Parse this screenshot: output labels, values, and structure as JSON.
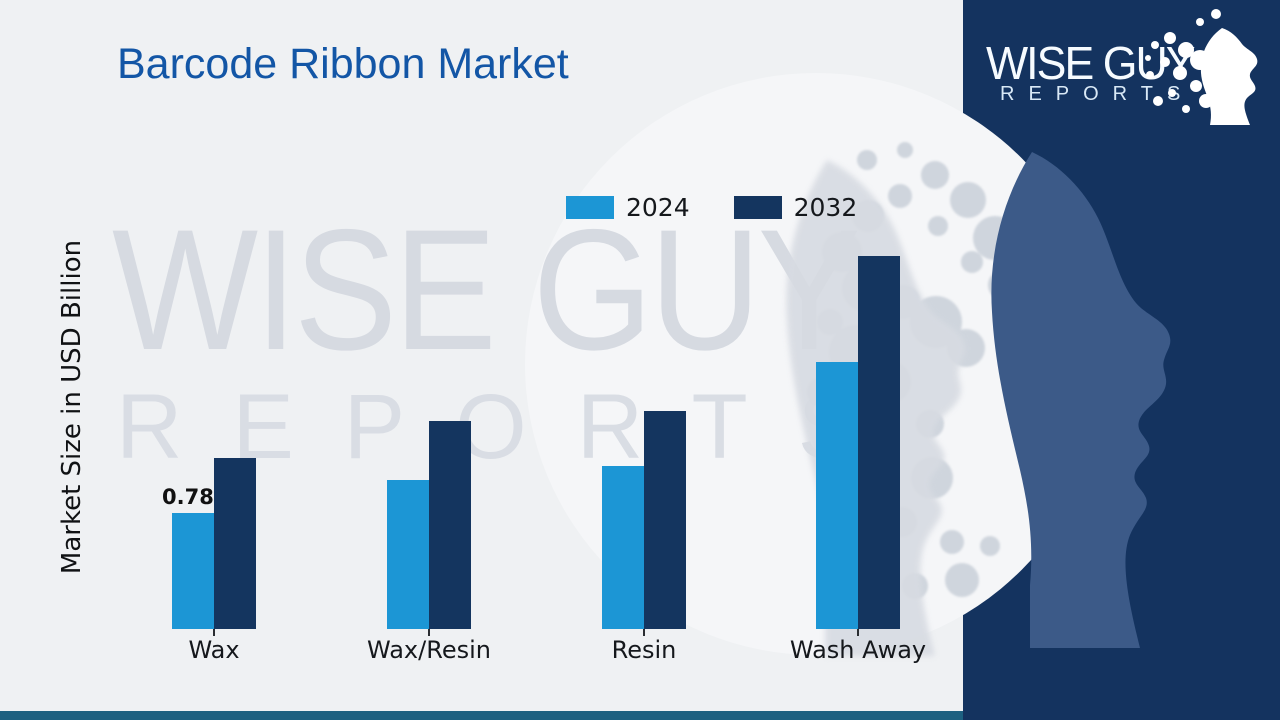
{
  "title": "Barcode Ribbon Market",
  "chart_data": {
    "type": "bar",
    "categories": [
      "Wax",
      "Wax/Resin",
      "Resin",
      "Wash Away"
    ],
    "series": [
      {
        "name": "2024",
        "color": "#1c96d5",
        "values": [
          0.78,
          1.0,
          1.1,
          1.8
        ]
      },
      {
        "name": "2032",
        "color": "#14355f",
        "values": [
          1.15,
          1.4,
          1.47,
          2.51
        ]
      }
    ],
    "title": "Barcode Ribbon Market",
    "xlabel": "",
    "ylabel": "Market Size in USD Billion",
    "ylim": [
      0,
      2.8
    ],
    "grid": false,
    "legend_position": "top",
    "bar_label": {
      "series": "2024",
      "category": "Wax",
      "text": "0.78"
    }
  },
  "ylabel": "Market Size in USD Billion",
  "legend": {
    "items": [
      {
        "label": "2024",
        "color": "#1c96d5"
      },
      {
        "label": "2032",
        "color": "#14355f"
      }
    ]
  },
  "watermark": {
    "line1": "WISE GUY",
    "line2": "REPORTS"
  },
  "logo": {
    "line1": "WISE GUY",
    "line2": "REPORTS"
  },
  "colors": {
    "title": "#1356a6",
    "series_2024": "#1c96d5",
    "series_2032": "#14355f",
    "panel_navy": "#14335f",
    "teal_strip": "#1d6080",
    "background": "#eff1f3",
    "watermark_gray": "#d6dae1"
  }
}
